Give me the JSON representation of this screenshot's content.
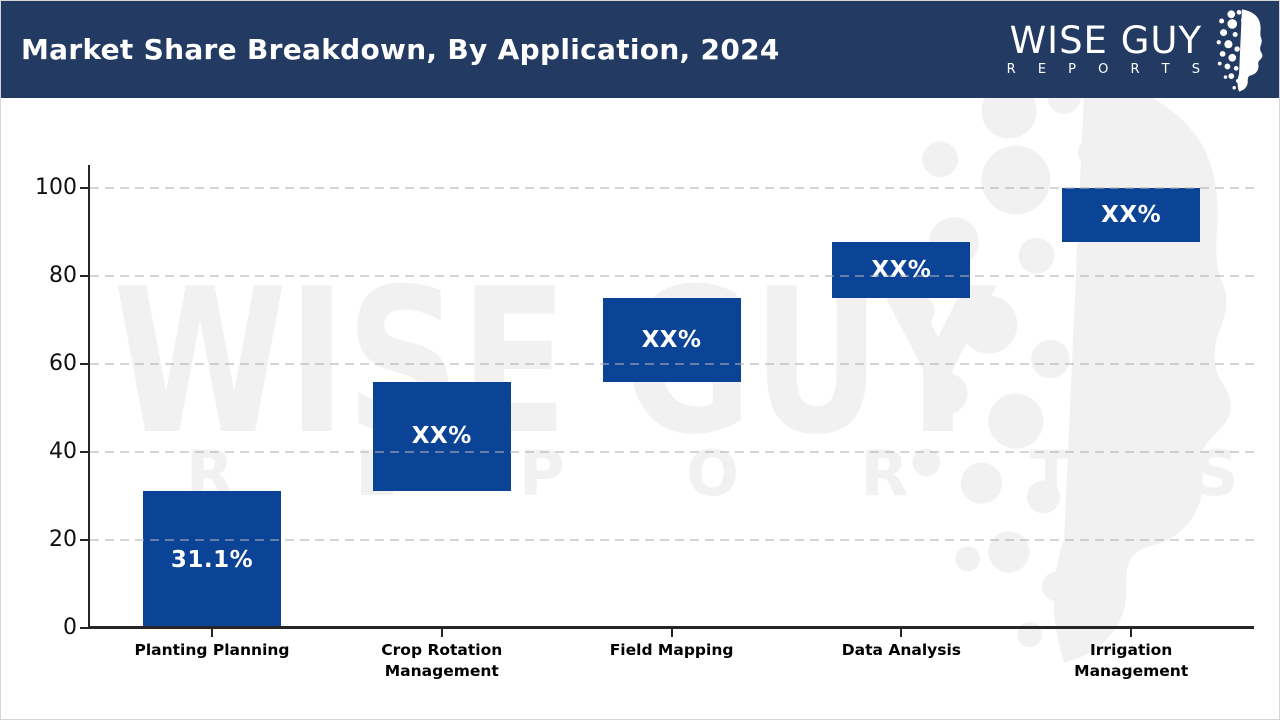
{
  "header": {
    "title": "Market Share Breakdown, By Application, 2024",
    "bg_color": "#233a62",
    "text_color": "#ffffff",
    "logo": {
      "word": "WISE GUY",
      "reports": "R E P O R T S"
    }
  },
  "watermark": {
    "word": "WISE GUY",
    "reports": "R E P O R T S",
    "color": "#f1f1f1"
  },
  "chart_data": {
    "type": "bar",
    "subtype": "waterfall",
    "title": "Market Share Breakdown, By Application, 2024",
    "categories": [
      "Planting Planning",
      "Crop Rotation Management",
      "Field Mapping",
      "Data Analysis",
      "Irrigation Management"
    ],
    "segments": [
      {
        "category": "Planting Planning",
        "start": 0,
        "end": 31.1,
        "label": "31.1%"
      },
      {
        "category": "Crop Rotation Management",
        "start": 31.1,
        "end": 56,
        "label": "XX%"
      },
      {
        "category": "Field Mapping",
        "start": 56,
        "end": 75,
        "label": "XX%"
      },
      {
        "category": "Data Analysis",
        "start": 75,
        "end": 87.7,
        "label": "XX%"
      },
      {
        "category": "Irrigation Management",
        "start": 87.7,
        "end": 100,
        "label": "XX%"
      }
    ],
    "yticks": [
      0,
      20,
      40,
      60,
      80,
      100
    ],
    "ylim": [
      0,
      105
    ],
    "xlabel": "",
    "ylabel": "",
    "grid": "horizontal-dashed",
    "legend": "none",
    "bar_color": "#0b4396",
    "bar_label_color": "#ffffff",
    "axis_color": "#262626"
  }
}
